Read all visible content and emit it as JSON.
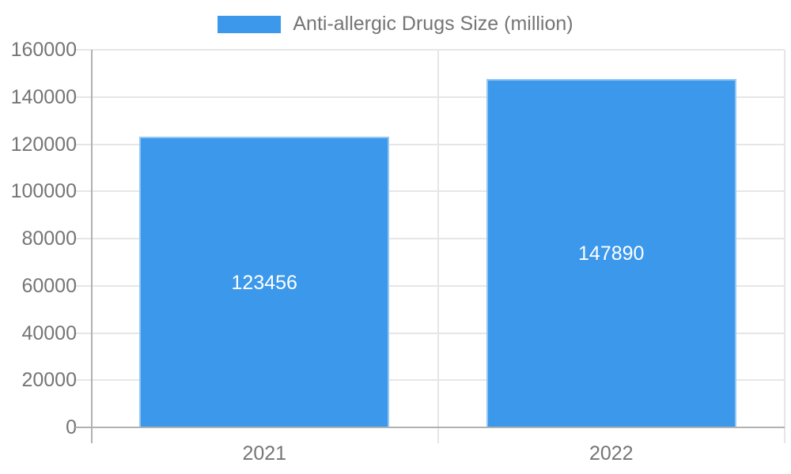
{
  "chart_data": {
    "type": "bar",
    "title": "",
    "legend": {
      "label": "Anti-allergic Drugs Size (million)",
      "position": "top"
    },
    "categories": [
      "2021",
      "2022"
    ],
    "series": [
      {
        "name": "Anti-allergic Drugs Size (million)",
        "values": [
          123456,
          147890
        ]
      }
    ],
    "data_labels": [
      "123456",
      "147890"
    ],
    "xlabel": "",
    "ylabel": "",
    "ylim": [
      0,
      160000
    ],
    "y_ticks": [
      0,
      20000,
      40000,
      60000,
      80000,
      100000,
      120000,
      140000,
      160000
    ],
    "grid": true,
    "colors": {
      "bar": "#3b98ea",
      "grid": "#e6e6e6",
      "axis": "#b1b1b1",
      "tick_text": "#757575",
      "value_label_text": "#ffffff",
      "background": "#ffffff"
    }
  }
}
